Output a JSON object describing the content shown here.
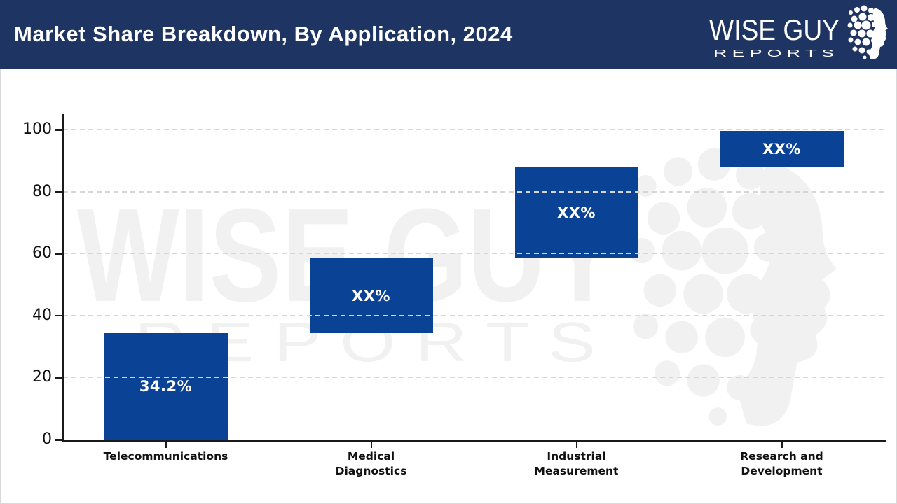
{
  "colors": {
    "header_bg": "#1e3462",
    "bar": "#0a4296",
    "bar_label": "#ffffff",
    "watermark": "#f1f1f1",
    "grid": "#d6d6d6",
    "axis": "#1a1a1a"
  },
  "header": {
    "logo": {
      "top": "WISE GUY",
      "bottom": "R E P O R T S"
    }
  },
  "watermark": {
    "top": "WISE GUY",
    "bottom": "R E P O R T S"
  },
  "chart_data": {
    "type": "bar",
    "subtype": "waterfall (floating cumulative bars)",
    "title": "Market Share Breakdown, By Application, 2024",
    "categories": [
      "Telecommunications",
      "Medical Diagnostics",
      "Industrial Measurement",
      "Research and Development"
    ],
    "category_lines": [
      [
        "Telecommunications"
      ],
      [
        "Medical",
        "Diagnostics"
      ],
      [
        "Industrial",
        "Measurement"
      ],
      [
        "Research and",
        "Development"
      ]
    ],
    "segments": [
      {
        "category": "Telecommunications",
        "start": 0,
        "end": 34.2,
        "label": "34.2%"
      },
      {
        "category": "Medical Diagnostics",
        "start": 34.2,
        "end": 58.5,
        "label": "XX%"
      },
      {
        "category": "Industrial Measurement",
        "start": 58.5,
        "end": 87.7,
        "label": "XX%"
      },
      {
        "category": "Research and Development",
        "start": 87.7,
        "end": 99.5,
        "label": "XX%"
      }
    ],
    "yticks": [
      0,
      20,
      40,
      60,
      80,
      100
    ],
    "ylim": [
      0,
      104.5
    ],
    "xlabel": "",
    "ylabel": "",
    "grid": "horizontal dashed, drawn above bars",
    "legend": "none"
  }
}
